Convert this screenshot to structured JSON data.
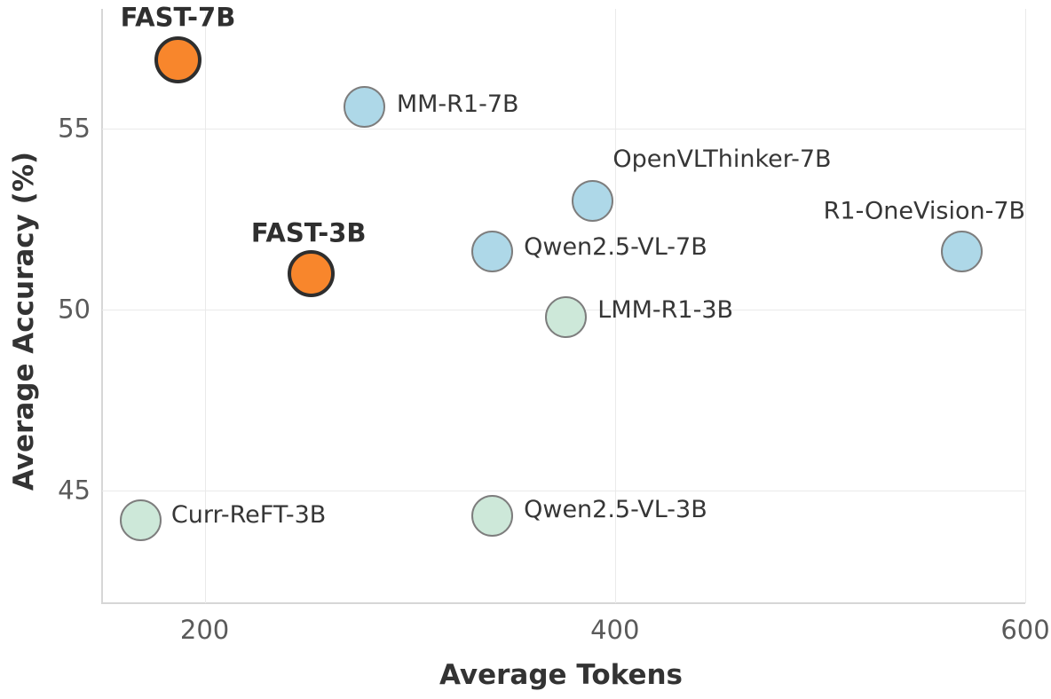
{
  "chart_data": {
    "type": "scatter",
    "title": "",
    "xlabel": "Average Tokens",
    "ylabel": "Average Accuracy (%)",
    "xlim": [
      150,
      600
    ],
    "ylim": [
      41.9,
      58.3
    ],
    "x_ticks": [
      200,
      400,
      600
    ],
    "y_ticks": [
      45,
      50,
      55
    ],
    "grid": true,
    "legend": "none",
    "series": [
      {
        "name": "fast-orange",
        "color": "#f8862c",
        "edge_color": "#2e2e2e",
        "edge_width": 4,
        "marker_size": 53,
        "points": [
          {
            "label": "FAST-7B",
            "x": 187,
            "y": 56.9,
            "bold": true,
            "label_anchor": "center",
            "label_dx": 0,
            "label_dy": -47
          },
          {
            "label": "FAST-3B",
            "x": 252,
            "y": 51.0,
            "bold": true,
            "label_anchor": "center",
            "label_dx": -3,
            "label_dy": -45
          }
        ]
      },
      {
        "name": "blue-7b",
        "color": "#aed8e8",
        "edge_color": "#7d7d7d",
        "edge_width": 2,
        "marker_size": 47,
        "points": [
          {
            "label": "MM-R1-7B",
            "x": 278,
            "y": 55.6,
            "bold": false,
            "label_anchor": "left",
            "label_dx": 36,
            "label_dy": -2
          },
          {
            "label": "OpenVLThinker-7B",
            "x": 389,
            "y": 53.0,
            "bold": false,
            "label_anchor": "left",
            "label_dx": 23,
            "label_dy": -47
          },
          {
            "label": "Qwen2.5-VL-7B",
            "x": 340,
            "y": 51.6,
            "bold": false,
            "label_anchor": "left",
            "label_dx": 36,
            "label_dy": -5
          },
          {
            "label": "R1-OneVision-7B",
            "x": 569,
            "y": 51.6,
            "bold": false,
            "label_anchor": "center",
            "label_dx": -42,
            "label_dy": -46
          }
        ]
      },
      {
        "name": "green-3b",
        "color": "#cde8d9",
        "edge_color": "#7d7d7d",
        "edge_width": 2,
        "marker_size": 47,
        "points": [
          {
            "label": "LMM-R1-3B",
            "x": 376,
            "y": 49.8,
            "bold": false,
            "label_anchor": "left",
            "label_dx": 36,
            "label_dy": -7
          },
          {
            "label": "Curr-ReFT-3B",
            "x": 169,
            "y": 44.2,
            "bold": false,
            "label_anchor": "left",
            "label_dx": 34,
            "label_dy": -5
          },
          {
            "label": "Qwen2.5-VL-3B",
            "x": 340,
            "y": 44.3,
            "bold": false,
            "label_anchor": "left",
            "label_dx": 36,
            "label_dy": -7
          }
        ]
      }
    ]
  }
}
